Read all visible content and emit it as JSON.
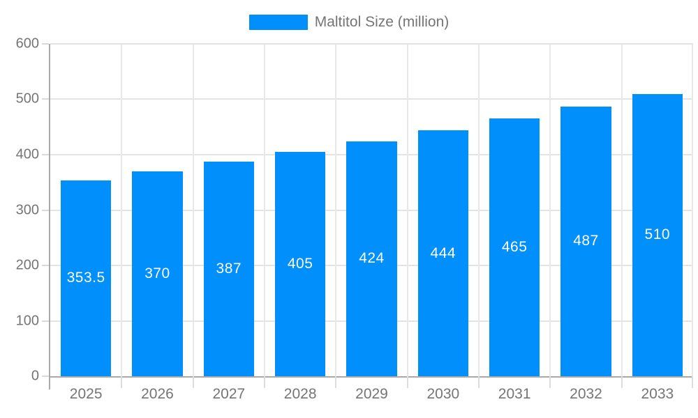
{
  "legend": {
    "label": "Maltitol Size (million)"
  },
  "colors": {
    "bar": "#008FFB",
    "grid_h": "#e3e3e3",
    "grid_v": "#e8e8e8",
    "axis": "#a9a9a9",
    "tick_text": "#757575",
    "value_label_text": "#ffffff"
  },
  "chart_data": {
    "type": "bar",
    "title": "Maltitol Size (million)",
    "series": [
      {
        "name": "Maltitol Size (million)",
        "values": [
          353.5,
          370,
          387,
          405,
          424,
          444,
          465,
          487,
          510
        ]
      }
    ],
    "categories": [
      "2025",
      "2026",
      "2027",
      "2028",
      "2029",
      "2030",
      "2031",
      "2032",
      "2033"
    ],
    "value_labels": [
      "353.5",
      "370",
      "387",
      "405",
      "424",
      "444",
      "465",
      "487",
      "510"
    ],
    "xlabel": "",
    "ylabel": "",
    "ylim": [
      0,
      600
    ],
    "yticks": [
      0,
      100,
      200,
      300,
      400,
      500,
      600
    ],
    "grid": true,
    "legend_position": "top-center",
    "value_label_position": "inside-center"
  }
}
